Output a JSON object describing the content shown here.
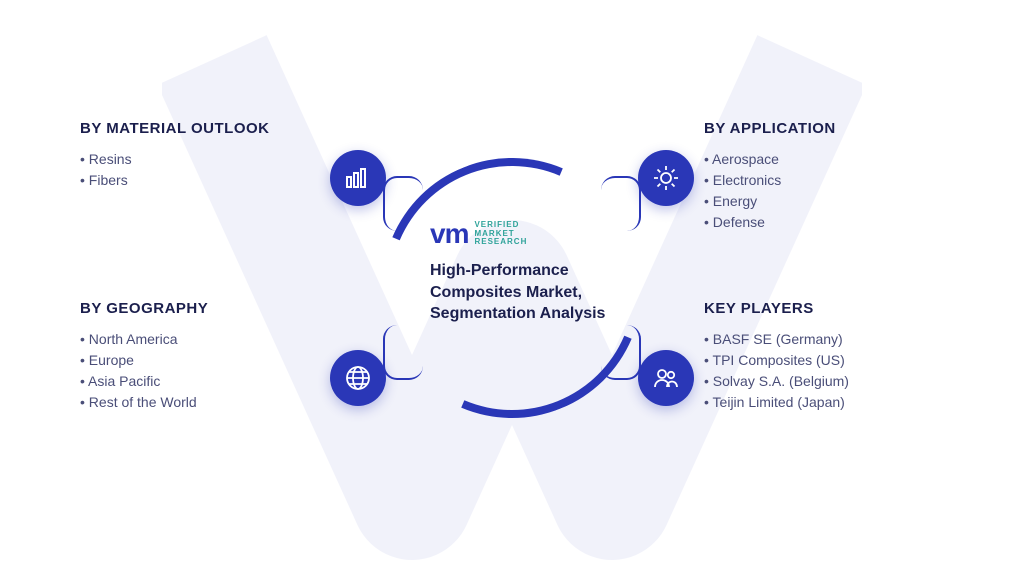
{
  "colors": {
    "accent": "#2a37b7",
    "teal": "#2fa39a",
    "titleColor": "#1b1f4d",
    "textColor": "#4a4e78",
    "bgWatermark": "#2a37b7"
  },
  "logo": {
    "mark": "vm",
    "line1": "VERIFIED",
    "line2": "MARKET",
    "line3": "RESEARCH"
  },
  "mainTitle": "High-Performance Composites Market, Segmentation Analysis",
  "segments": {
    "tl": {
      "header": "BY MATERIAL OUTLOOK",
      "icon": "bar-chart-icon",
      "items": [
        "Resins",
        "Fibers"
      ]
    },
    "bl": {
      "header": "BY GEOGRAPHY",
      "icon": "globe-icon",
      "items": [
        "North America",
        "Europe",
        "Asia Pacific",
        "Rest of the World"
      ]
    },
    "tr": {
      "header": "BY APPLICATION",
      "icon": "gear-icon",
      "items": [
        "Aerospace",
        "Electronics",
        "Energy",
        "Defense"
      ]
    },
    "br": {
      "header": "KEY PLAYERS",
      "icon": "people-icon",
      "items": [
        "BASF SE (Germany)",
        "TPI Composites (US)",
        "Solvay S.A. (Belgium)",
        "Teijin Limited (Japan)"
      ]
    }
  }
}
